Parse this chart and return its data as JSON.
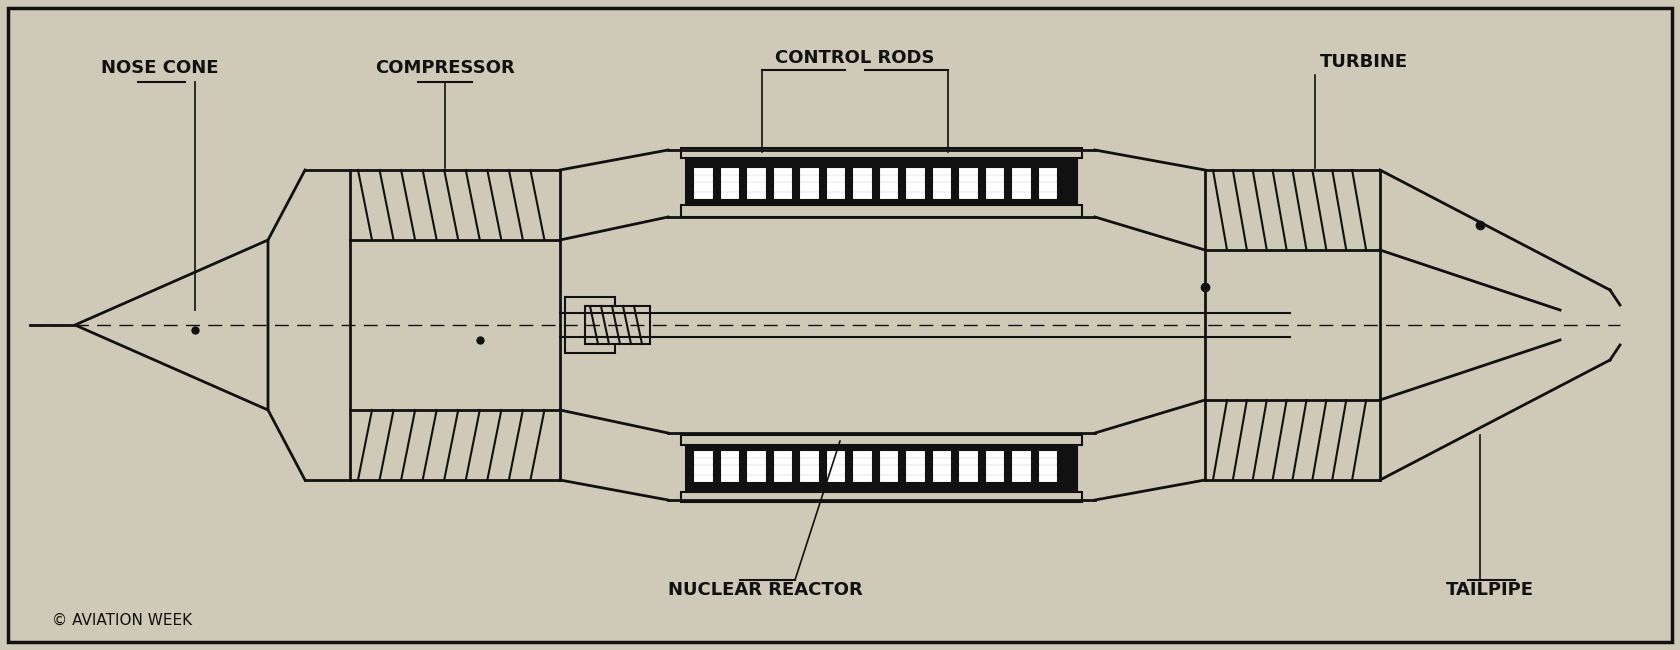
{
  "bg_color": "#cfc9b8",
  "line_color": "#111111",
  "reactor_fill": "#111111",
  "text_color": "#111111",
  "labels": {
    "nose_cone": "NOSE CONE",
    "compressor": "COMPRESSOR",
    "control_rods": "CONTROL RODS",
    "turbine": "TURBINE",
    "nuclear_reactor": "NUCLEAR REACTOR",
    "tailpipe": "TAILPIPE",
    "copyright": "© AVIATION WEEK"
  },
  "figsize": [
    16.8,
    6.5
  ],
  "dpi": 100
}
